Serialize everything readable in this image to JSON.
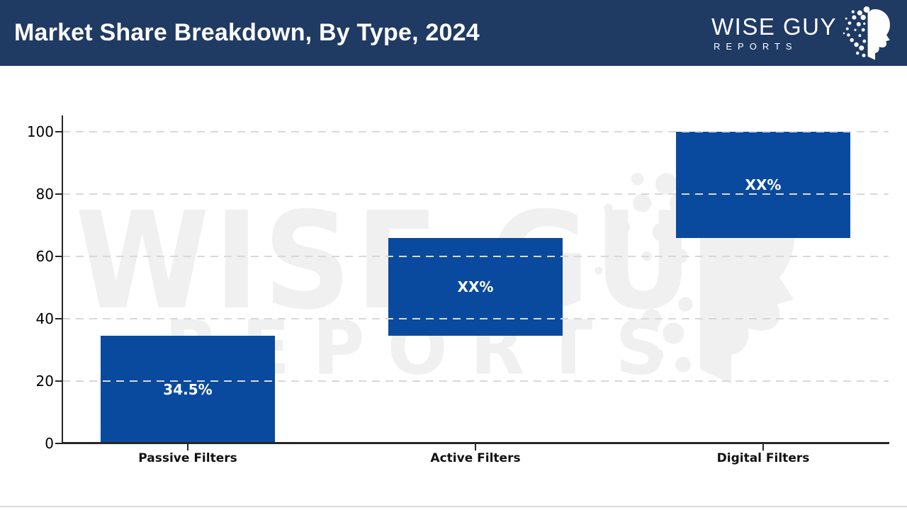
{
  "header": {
    "title": "Market Share Breakdown, By Type, 2024",
    "background_color": "#1f3a63",
    "logo": {
      "line1": "WISE GUY",
      "line2": "REPORTS"
    }
  },
  "watermark": {
    "line1": "WISE GUY",
    "line2": "REPORTS"
  },
  "chart_data": {
    "type": "bar",
    "subtype": "waterfall",
    "title": "Market Share Breakdown, By Type, 2024",
    "categories": [
      "Passive Filters",
      "Active Filters",
      "Digital Filters"
    ],
    "segments": [
      {
        "category": "Passive Filters",
        "start": 0,
        "end": 34.5,
        "label": "34.5%"
      },
      {
        "category": "Active Filters",
        "start": 34.5,
        "end": 66,
        "label": "XX%"
      },
      {
        "category": "Digital Filters",
        "start": 66,
        "end": 100,
        "label": "XX%"
      }
    ],
    "ylim": [
      0,
      100
    ],
    "yticks": [
      0,
      20,
      40,
      60,
      80,
      100
    ],
    "grid": "horizontal-dashed",
    "legend": "none",
    "bar_color": "#0a4a9e",
    "bar_label_color": "#ffffff",
    "gridline_color": "#d9d9d9",
    "axis_color": "#262626"
  }
}
